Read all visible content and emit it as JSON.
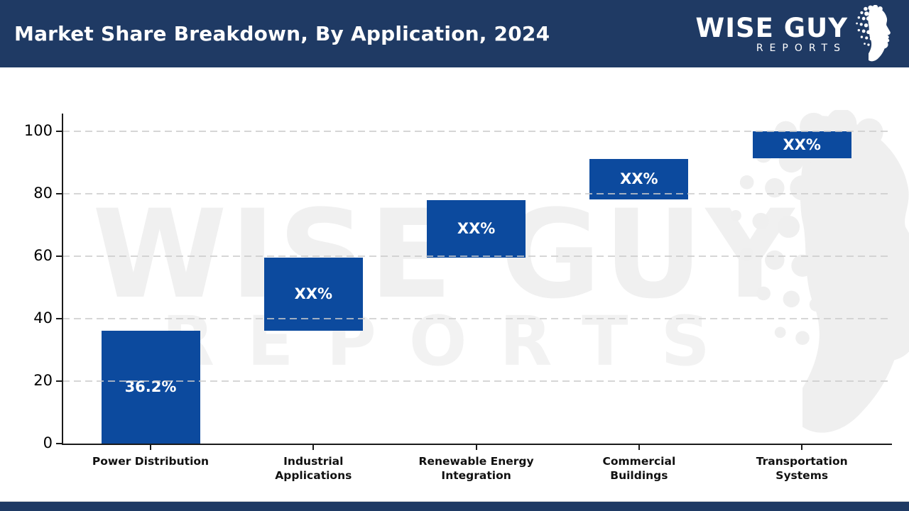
{
  "header": {
    "title": "Market Share Breakdown, By Application, 2024",
    "bg_color": "#1f3a64",
    "logo": {
      "line1": "WISE GUY",
      "line2": "REPORTS"
    }
  },
  "watermark": {
    "line1": "WISE GUY",
    "line2": "REPORTS"
  },
  "footer": {
    "bg_color": "#1f3a64"
  },
  "chart_data": {
    "type": "bar",
    "subtype": "waterfall",
    "title": "Market Share Breakdown, By Application, 2024",
    "categories": [
      "Power Distribution",
      "Industrial Applications",
      "Renewable Energy Integration",
      "Commercial Buildings",
      "Transportation Systems"
    ],
    "category_label_lines": [
      [
        "Power Distribution"
      ],
      [
        "Industrial",
        "Applications"
      ],
      [
        "Renewable Energy",
        "Integration"
      ],
      [
        "Commercial",
        "Buildings"
      ],
      [
        "Transportation",
        "Systems"
      ]
    ],
    "series": [
      {
        "name": "Market Share (%)",
        "segments": [
          {
            "start": 0,
            "end": 36.2,
            "label": "36.2%"
          },
          {
            "start": 36.2,
            "end": 59.6,
            "label": "XX%"
          },
          {
            "start": 59.6,
            "end": 78.0,
            "label": "XX%"
          },
          {
            "start": 78.2,
            "end": 91.2,
            "label": "XX%"
          },
          {
            "start": 91.4,
            "end": 100,
            "label": "XX%"
          }
        ]
      }
    ],
    "ylim": [
      0,
      105
    ],
    "yticks": [
      0,
      20,
      40,
      60,
      80,
      100
    ],
    "grid": "dashed horizontal gridlines drawn over bars",
    "legend": "none",
    "bar_color": "#0c4a9e",
    "bar_label_color": "#ffffff",
    "axis_color": "#1a1a1a",
    "gridline_color": "#d8d8d8"
  }
}
